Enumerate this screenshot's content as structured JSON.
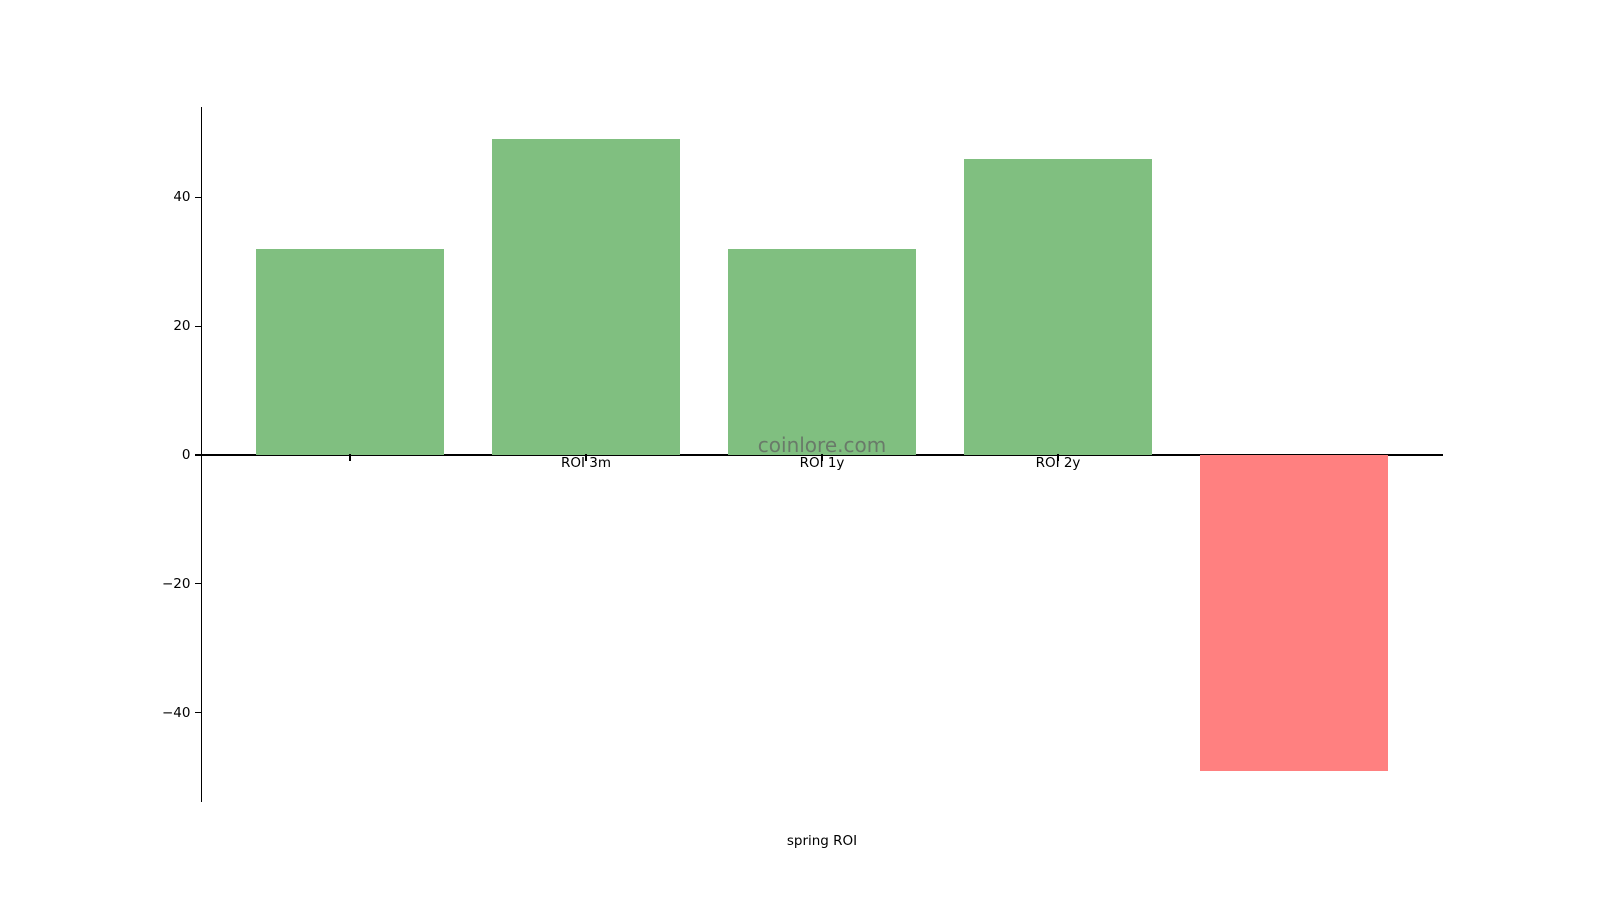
{
  "chart_data": {
    "type": "bar",
    "title": "",
    "xlabel": "spring ROI",
    "ylabel": "",
    "watermark": "coinlore.com",
    "categories": [
      "",
      "ROI 3m",
      "ROI 1y",
      "ROI 2y",
      ""
    ],
    "values": [
      32,
      49,
      32,
      46,
      -49
    ],
    "bar_colors": [
      "#80bf80",
      "#80bf80",
      "#80bf80",
      "#80bf80",
      "#ff8080"
    ],
    "yticks": [
      40,
      20,
      0,
      -20,
      -40
    ],
    "ytick_labels": [
      "40",
      "20",
      "0",
      "−20",
      "−40"
    ],
    "xtick_visible": [
      true,
      true,
      true,
      true,
      false
    ],
    "ylim": [
      -53.9,
      53.9
    ],
    "grid": false,
    "legend": "none",
    "colors": {
      "positive": "#80bf80",
      "negative": "#ff8080",
      "axis": "#000000",
      "watermark_gray": "#5f5f5f"
    }
  }
}
